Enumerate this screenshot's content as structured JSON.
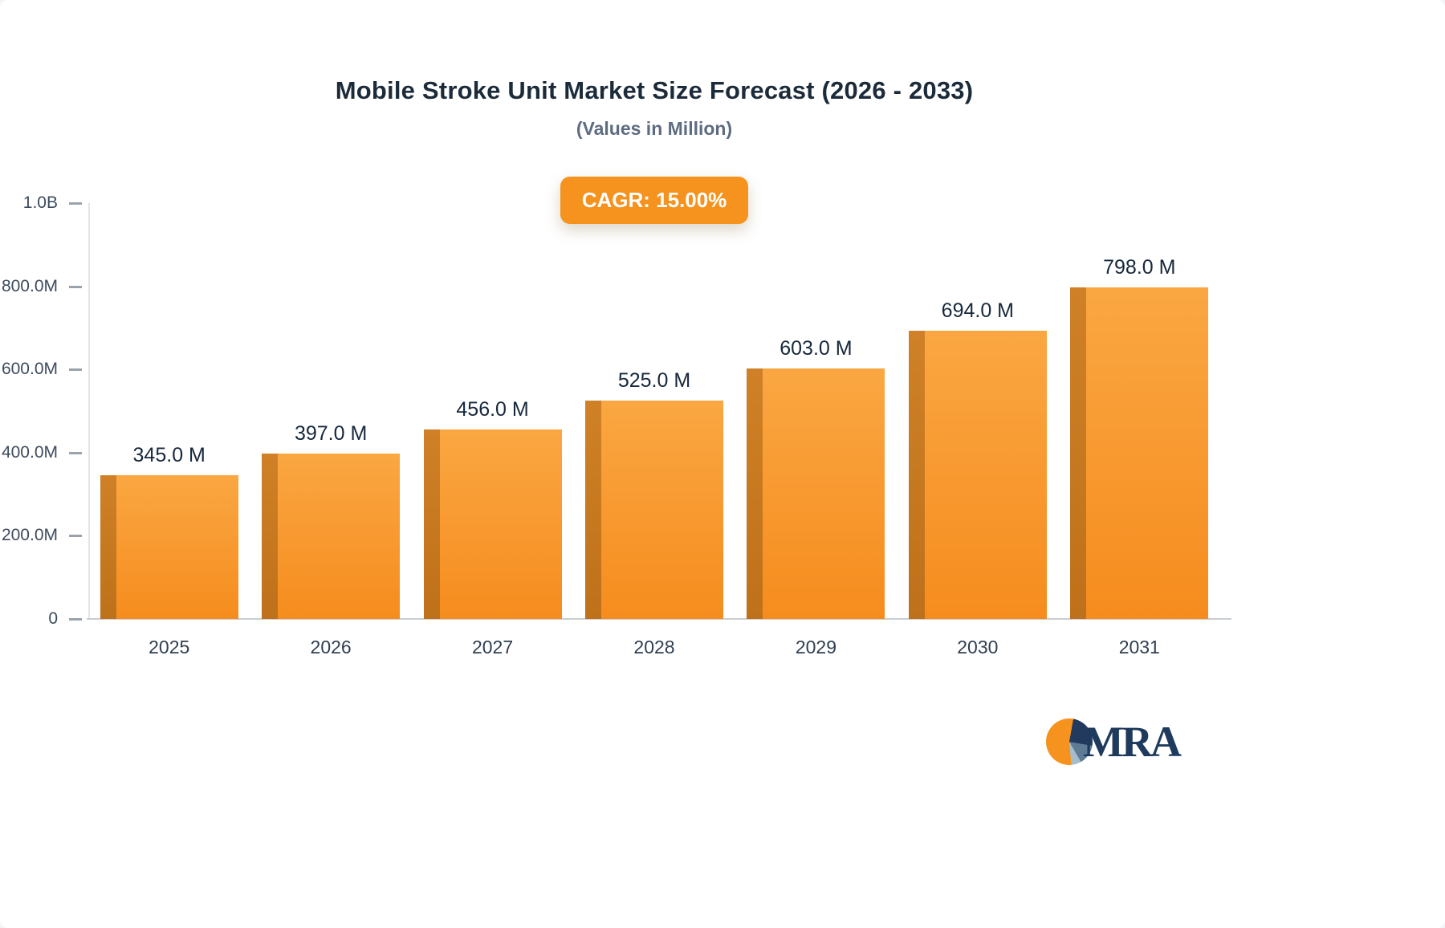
{
  "title": "Mobile Stroke Unit Market Size Forecast (2026 - 2033)",
  "subtitle": "(Values in Million)",
  "cagr_badge": "CAGR: 15.00%",
  "logo_text": "MRA",
  "colors": {
    "accent_orange": "#F6921E",
    "bar_front": "#F68C1E",
    "bar_side": "#BE711A",
    "title_text": "#1C2B3A",
    "subtitle_text": "#5D6C80",
    "axis_text": "#3E4C5E",
    "logo_navy": "#1E3A5C"
  },
  "chart_data": {
    "type": "bar",
    "title": "Mobile Stroke Unit Market Size Forecast (2026 - 2033)",
    "subtitle": "(Values in Million)",
    "unit": "Million USD",
    "cagr": "15.00%",
    "categories": [
      "2025",
      "2026",
      "2027",
      "2028",
      "2029",
      "2030",
      "2031"
    ],
    "values": [
      345.0,
      397.0,
      456.0,
      525.0,
      603.0,
      694.0,
      798.0
    ],
    "value_labels": [
      "345.0 M",
      "397.0 M",
      "456.0 M",
      "525.0 M",
      "603.0 M",
      "694.0 M",
      "798.0 M"
    ],
    "xlabel": "",
    "ylabel": "",
    "ylim": [
      0,
      1000
    ],
    "y_ticks": [
      {
        "label": "1.0B",
        "value": 1000
      },
      {
        "label": "800.0M",
        "value": 800
      },
      {
        "label": "600.0M",
        "value": 600
      },
      {
        "label": "400.0M",
        "value": 400
      },
      {
        "label": "200.0M",
        "value": 200
      },
      {
        "label": "0",
        "value": 0
      }
    ],
    "grid": false,
    "legend": "none"
  }
}
